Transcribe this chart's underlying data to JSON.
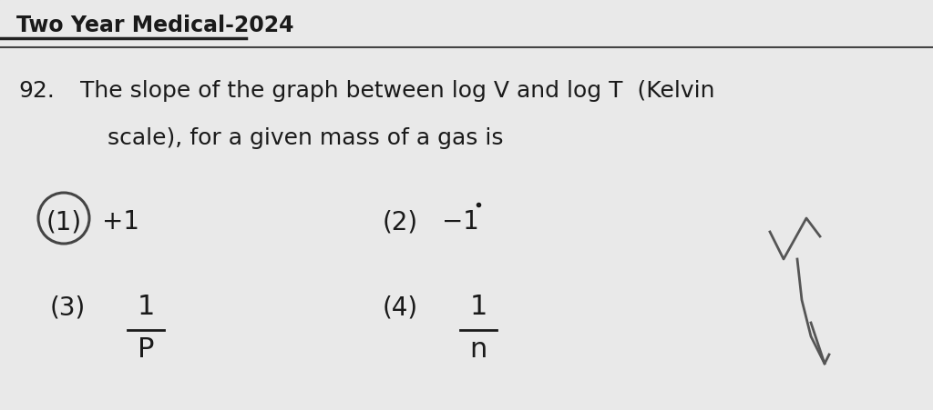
{
  "background_color": "#e8e8e8",
  "title_text": "Two Year Medical-2024",
  "question_number": "92.",
  "font_size_title": 17,
  "font_size_question": 18,
  "font_size_options": 20,
  "text_color": "#1a1a1a",
  "line1": "The slope of the graph between log V and log T  (Kelvin",
  "line2": "scale), for a given mass of a gas is",
  "opt1_label": "(1)",
  "opt1_val": "+1",
  "opt2_label": "(2)",
  "opt2_val": "−1",
  "opt3_label": "(3)",
  "opt4_label": "(4)"
}
